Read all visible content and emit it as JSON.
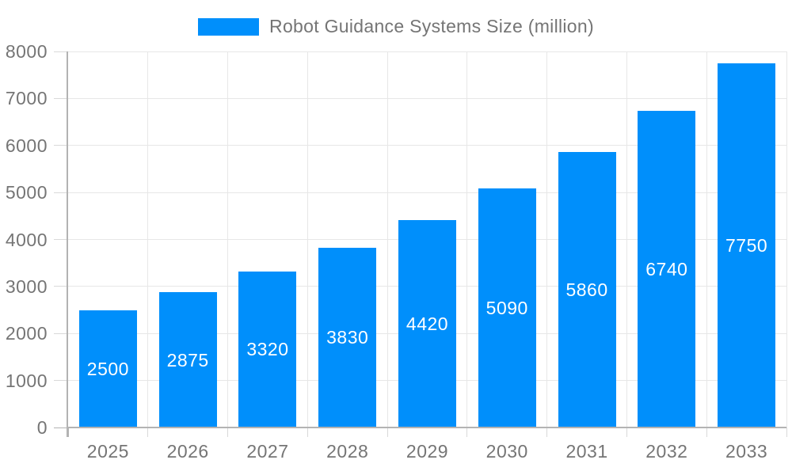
{
  "chart_data": {
    "type": "bar",
    "title": "Robot Guidance Systems Size (million)",
    "categories": [
      "2025",
      "2026",
      "2027",
      "2028",
      "2029",
      "2030",
      "2031",
      "2032",
      "2033"
    ],
    "series": [
      {
        "name": "Robot Guidance Systems Size (million)",
        "values": [
          2500,
          2875,
          3320,
          3830,
          4420,
          5090,
          5860,
          6740,
          7750
        ]
      }
    ],
    "value_labels": [
      "2500",
      "2875",
      "3320",
      "3830",
      "4420",
      "5090",
      "5860",
      "6740",
      "7750"
    ],
    "xlabel": "",
    "ylabel": "",
    "ylim": [
      0,
      8000
    ],
    "yticks": [
      0,
      1000,
      2000,
      3000,
      4000,
      5000,
      6000,
      7000,
      8000
    ],
    "ytick_labels": [
      "0",
      "1000",
      "2000",
      "3000",
      "4000",
      "5000",
      "6000",
      "7000",
      "8000"
    ],
    "grid": true,
    "legend_position": "top-center",
    "colors": {
      "bar": "#008ffb",
      "value_label": "#ffffff",
      "axis_text": "#757575",
      "legend_text": "#757575",
      "gridline": "#e7e7e7",
      "tick": "#d9d9d9",
      "axis_line": "#b3b3b3",
      "background": "#ffffff"
    }
  },
  "legend": {
    "label": "Robot Guidance Systems Size (million)"
  }
}
